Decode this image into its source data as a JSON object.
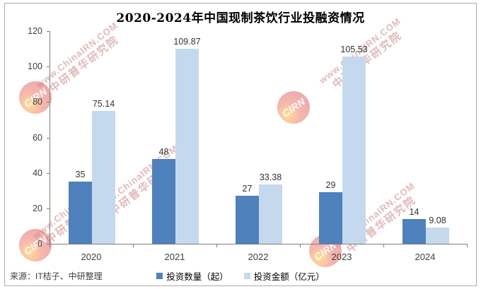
{
  "title": "2020-2024年中国现制茶饮行业投融资情况",
  "source": "来源：IT桔子、中研整理",
  "chart_data": {
    "type": "bar",
    "title": "2020-2024年中国现制茶饮行业投融资情况",
    "categories": [
      "2020",
      "2021",
      "2022",
      "2023",
      "2024"
    ],
    "series": [
      {
        "name": "投资数量（起）",
        "color": "#4f81bd",
        "values": [
          35,
          48,
          27,
          29,
          14
        ],
        "labels": [
          "35",
          "48",
          "27",
          "29",
          "14"
        ]
      },
      {
        "name": "投资金额（亿元）",
        "color": "#c5d9ee",
        "values": [
          75.14,
          109.87,
          33.38,
          105.53,
          9.08
        ],
        "labels": [
          "75.14",
          "109.87",
          "33.38",
          "105.53",
          "9.08"
        ]
      }
    ],
    "ylim": [
      0,
      120
    ],
    "yticks": [
      0,
      20,
      40,
      60,
      80,
      100,
      120
    ],
    "grid": false,
    "legend_position": "bottom",
    "xlabel": "",
    "ylabel": ""
  },
  "watermark": {
    "logo_text": "CIRN",
    "line1": "www.ChinaIRN.COM",
    "line2": "中研普华研究院"
  }
}
